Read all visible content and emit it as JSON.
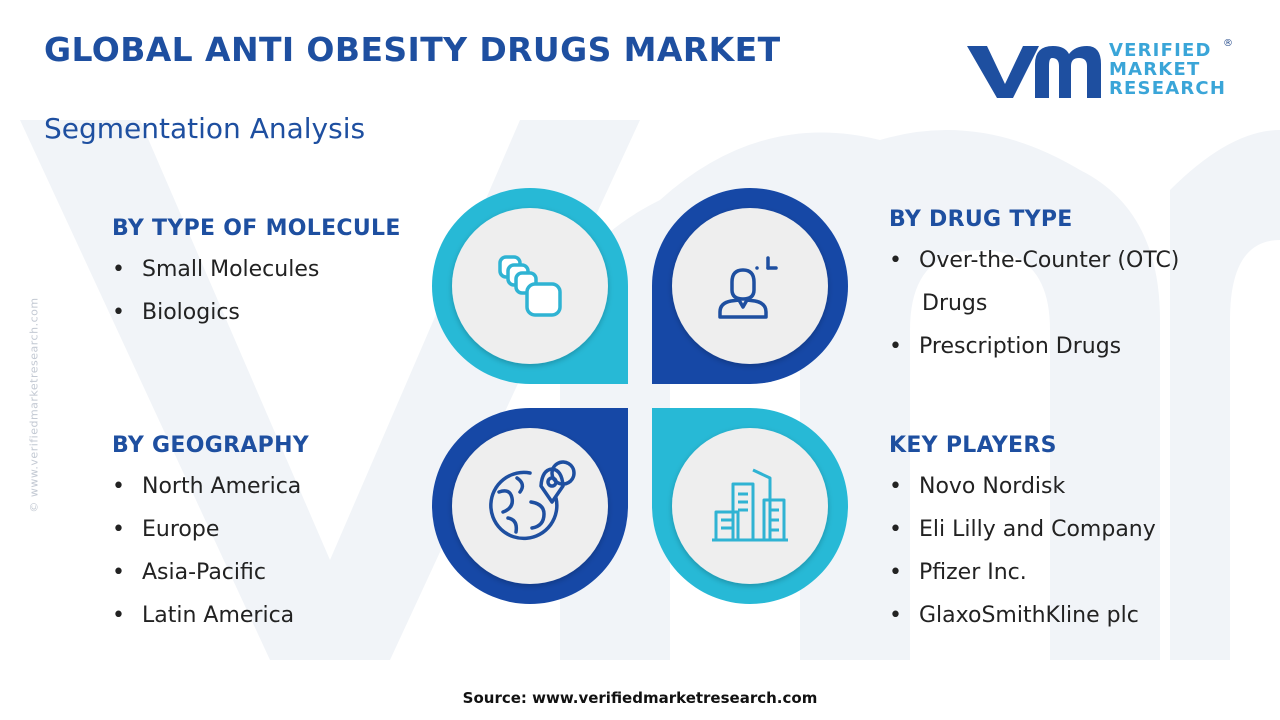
{
  "header": {
    "title": "GLOBAL ANTI OBESITY DRUGS MARKET",
    "subtitle": "Segmentation Analysis"
  },
  "logo": {
    "line1": "VERIFIED",
    "line2": "MARKET",
    "line3": "RESEARCH",
    "registered_mark": "®"
  },
  "side_credit": "© www.verifiedmarketresearch.com",
  "segments": {
    "molecule": {
      "title": "BY TYPE OF MOLECULE",
      "icon": "layered-blocks-icon",
      "items": [
        "Small Molecules",
        "Biologics"
      ]
    },
    "drug_type": {
      "title": "BY DRUG TYPE",
      "icon": "user-focus-icon",
      "items": [
        "Over-the-Counter (OTC)",
        "Drugs",
        "Prescription Drugs"
      ]
    },
    "geography": {
      "title": "BY GEOGRAPHY",
      "icon": "globe-location-icon",
      "items": [
        "North America",
        "Europe",
        "Asia-Pacific",
        "Latin America"
      ]
    },
    "players": {
      "title": "KEY PLAYERS",
      "icon": "city-buildings-icon",
      "items": [
        "Novo Nordisk",
        "Eli Lilly and Company",
        "Pfizer Inc.",
        "GlaxoSmithKline plc"
      ]
    }
  },
  "colors": {
    "navy": "#1e4fa0",
    "teal": "#27b9d6",
    "deep_blue": "#1648a6",
    "icon_teal": "#2fb3d3",
    "circle_fill": "#eeeeee"
  },
  "source": "Source: www.verifiedmarketresearch.com"
}
